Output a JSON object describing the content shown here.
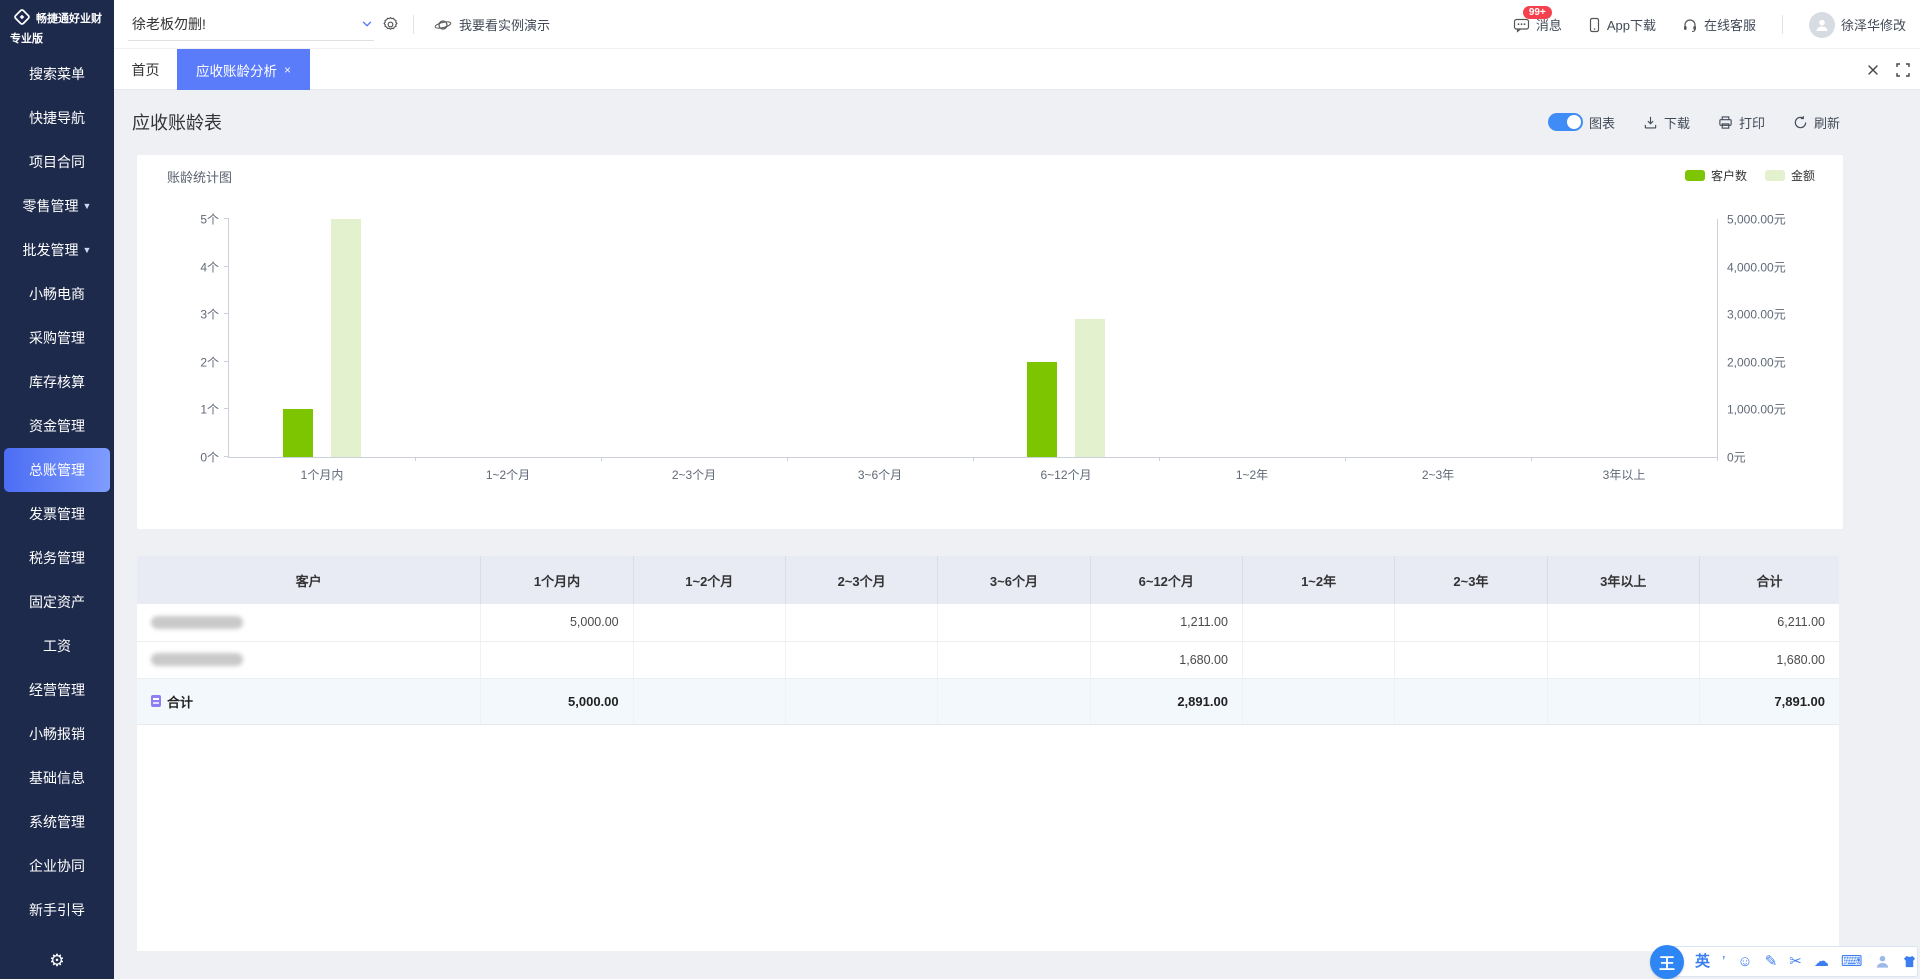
{
  "brand": {
    "name": "畅捷通好业财",
    "edition": "专业版"
  },
  "colors": {
    "accent_blue": "#5b7cfa",
    "toggle_blue": "#3f8cf7",
    "sidebar_bg": "#1d2a4b",
    "badge_red": "#f5414d",
    "bar_green": "#7cc500",
    "bar_light_green": "#e3f1cf",
    "table_header_bg": "#e9ebf4",
    "total_row_bg": "#f3f8fd"
  },
  "sidebar": {
    "items": [
      {
        "label": "搜索菜单"
      },
      {
        "label": "快捷导航"
      },
      {
        "label": "项目合同"
      },
      {
        "label": "零售管理",
        "arrow": true
      },
      {
        "label": "批发管理",
        "arrow": true
      },
      {
        "label": "小畅电商"
      },
      {
        "label": "采购管理"
      },
      {
        "label": "库存核算"
      },
      {
        "label": "资金管理"
      },
      {
        "label": "总账管理",
        "active": true
      },
      {
        "label": "发票管理"
      },
      {
        "label": "税务管理"
      },
      {
        "label": "固定资产"
      },
      {
        "label": "工资"
      },
      {
        "label": "经营管理"
      },
      {
        "label": "小畅报销"
      },
      {
        "label": "基础信息"
      },
      {
        "label": "系统管理"
      },
      {
        "label": "企业协同"
      },
      {
        "label": "新手引导"
      }
    ]
  },
  "topbar": {
    "company": "徐老板勿删!",
    "demo": "我要看实例演示",
    "messages": "消息",
    "messages_badge": "99+",
    "app_download": "App下载",
    "online_service": "在线客服",
    "user": "徐泽华修改"
  },
  "tabs": {
    "home": "首页",
    "active": "应收账龄分析",
    "close": "×"
  },
  "page": {
    "title": "应收账龄表",
    "actions": {
      "chart_toggle": "图表",
      "download": "下载",
      "print": "打印",
      "refresh": "刷新"
    }
  },
  "chart_data": {
    "type": "bar",
    "title": "账龄统计图",
    "categories": [
      "1个月内",
      "1~2个月",
      "2~3个月",
      "3~6个月",
      "6~12个月",
      "1~2年",
      "2~3年",
      "3年以上"
    ],
    "series": [
      {
        "name": "客户数",
        "axis": "left",
        "color": "#7cc500",
        "values": [
          1,
          0,
          0,
          0,
          2,
          0,
          0,
          0
        ]
      },
      {
        "name": "金额",
        "axis": "right",
        "color": "#e3f1cf",
        "values": [
          5000,
          0,
          0,
          0,
          2891,
          0,
          0,
          0
        ]
      }
    ],
    "left_axis": {
      "labels": [
        "5个",
        "4个",
        "3个",
        "2个",
        "1个",
        "0个"
      ],
      "max": 5
    },
    "right_axis": {
      "labels": [
        "5,000.00元",
        "4,000.00元",
        "3,000.00元",
        "2,000.00元",
        "1,000.00元",
        "0元"
      ],
      "max": 5000
    },
    "legend_position": "top-right",
    "grid": false
  },
  "table": {
    "columns": [
      "客户",
      "1个月内",
      "1~2个月",
      "2~3个月",
      "3~6个月",
      "6~12个月",
      "1~2年",
      "2~3年",
      "3年以上",
      "合计"
    ],
    "rows": [
      {
        "customer_redacted": true,
        "cells": [
          "",
          "5,000.00",
          "",
          "",
          "",
          "1,211.00",
          "",
          "",
          "",
          "6,211.00"
        ]
      },
      {
        "customer_redacted": true,
        "cells": [
          "",
          "",
          "",
          "",
          "",
          "1,680.00",
          "",
          "",
          "",
          "1,680.00"
        ]
      }
    ],
    "total": {
      "label": "合计",
      "cells": [
        "",
        "5,000.00",
        "",
        "",
        "",
        "2,891.00",
        "",
        "",
        "",
        "7,891.00"
      ]
    }
  },
  "ime": {
    "logo": "王",
    "mode": "英",
    "icons": [
      "punctuation",
      "emoji",
      "pen",
      "scissors",
      "cloud",
      "keyboard",
      "person",
      "skin",
      "settings"
    ]
  }
}
